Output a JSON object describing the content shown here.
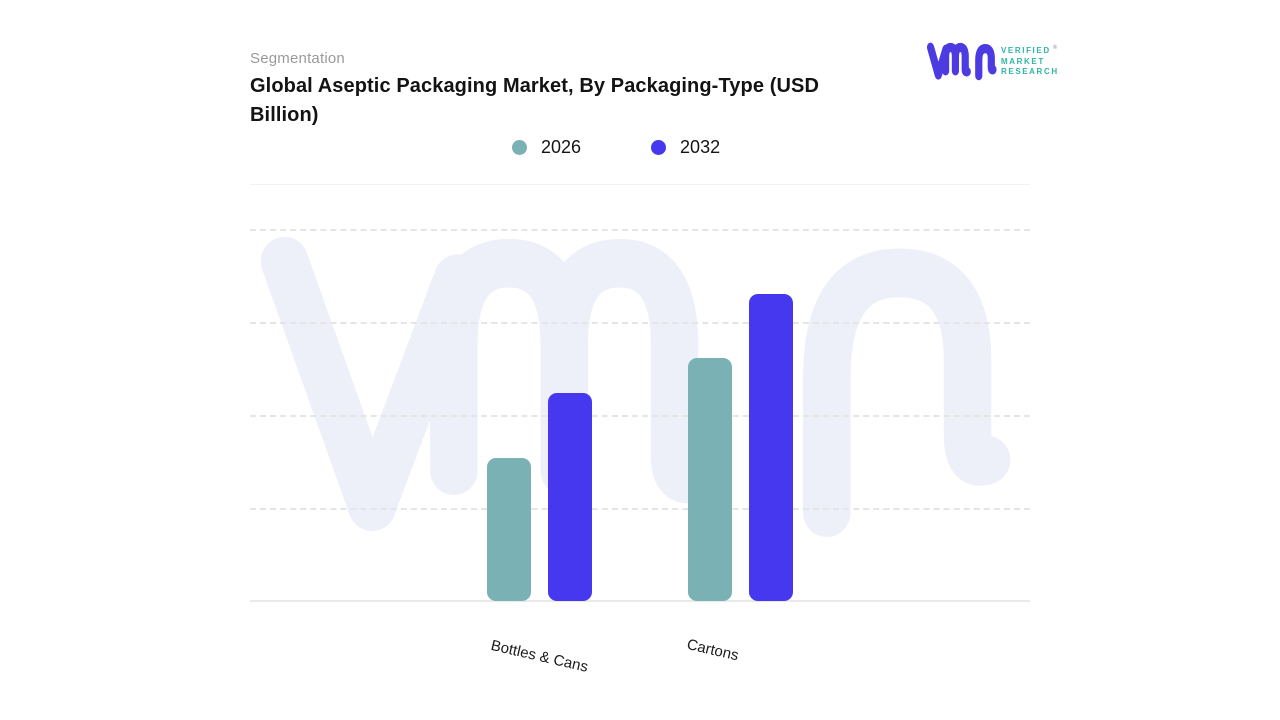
{
  "header": {
    "eyebrow": "Segmentation",
    "title": "Global Aseptic Packaging Market, By Packaging-Type (USD Billion)"
  },
  "logo": {
    "brand_lines": [
      "VERIFIED",
      "MARKET",
      "RESEARCH"
    ],
    "registered_mark": "®",
    "mark": "vmr-monogram"
  },
  "legend": [
    {
      "label": "2026",
      "color": "#79B1B5"
    },
    {
      "label": "2032",
      "color": "#4638EF"
    }
  ],
  "chart_data": {
    "type": "bar",
    "title": "Global Aseptic Packaging Market, By Packaging-Type (USD Billion)",
    "categories": [
      "Bottles & Cans",
      "Cartons"
    ],
    "series": [
      {
        "name": "2026",
        "color": "#79B1B5",
        "values": [
          38.4,
          65.3
        ]
      },
      {
        "name": "2032",
        "color": "#4638EF",
        "values": [
          55.9,
          82.5
        ]
      }
    ],
    "xlabel": "",
    "ylabel": "",
    "ylim": [
      0,
      100
    ],
    "y_axis_labels_visible": false,
    "value_note": "no numeric labels shown on chart; values estimated as percent of plot height",
    "grid": "4 dashed horizontal gridlines, solid baseline",
    "legend_position": "top-center",
    "watermark": "vmr"
  },
  "colors": {
    "accent_blue": "#4638EF",
    "accent_teal": "#79B1B5",
    "logo_mark": "#4B3BE0",
    "logo_text": "#2EB5A5",
    "watermark": "#EEF0F9",
    "gridline": "#E5E5E5",
    "axis_line": "#E9E9E9",
    "divider": "#F0F0F0",
    "title_text": "#131313",
    "eyebrow_text": "#9A9A9A"
  }
}
